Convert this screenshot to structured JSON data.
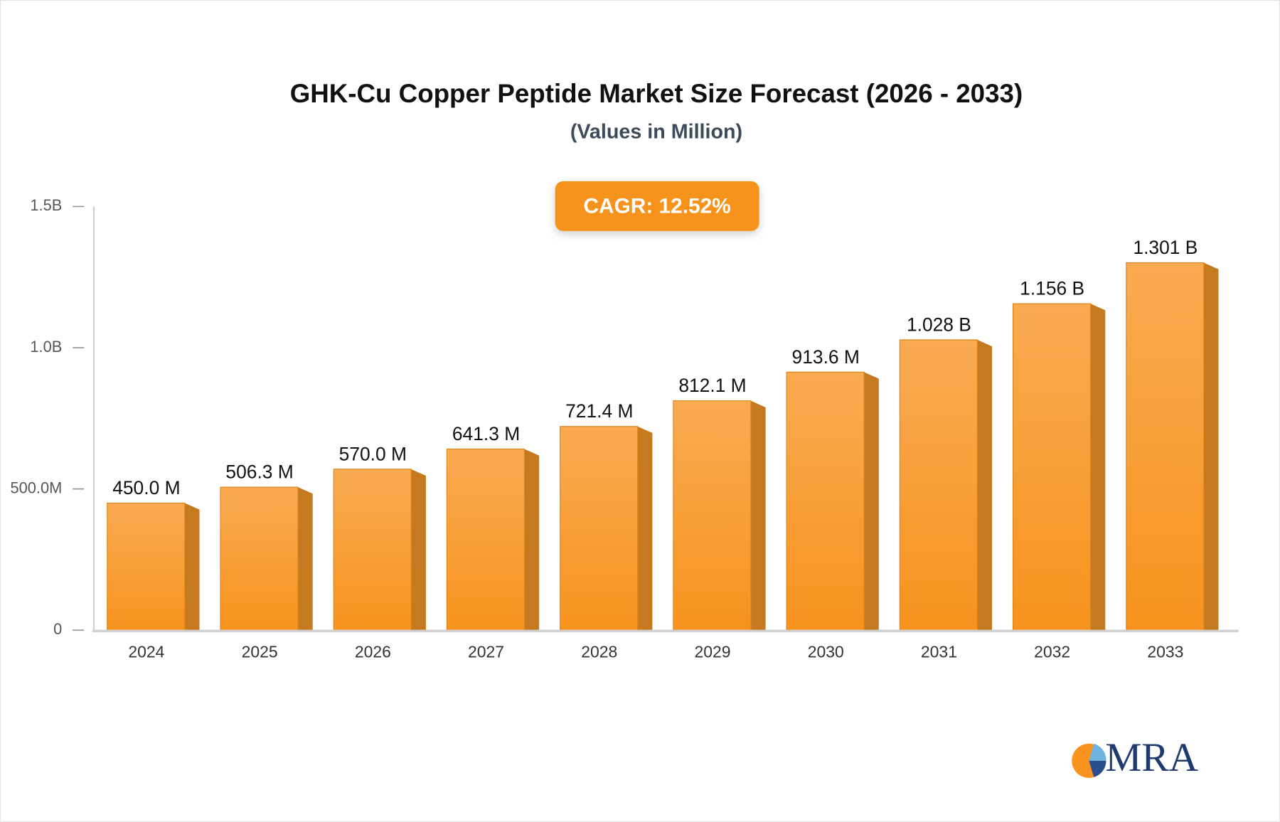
{
  "chart_data": {
    "type": "bar",
    "title": "GHK-Cu Copper Peptide Market Size Forecast (2026 - 2033)",
    "subtitle": "(Values in Million)",
    "annotation": "CAGR: 12.52%",
    "logo": "MRA",
    "categories": [
      "2024",
      "2025",
      "2026",
      "2027",
      "2028",
      "2029",
      "2030",
      "2031",
      "2032",
      "2033"
    ],
    "values": [
      450.0,
      506.3,
      570.0,
      641.3,
      721.4,
      812.1,
      913.6,
      1028,
      1156,
      1301
    ],
    "value_labels": [
      "450.0 M",
      "506.3 M",
      "570.0 M",
      "641.3 M",
      "721.4 M",
      "812.1 M",
      "913.6 M",
      "1.028 B",
      "1.156 B",
      "1.301 B"
    ],
    "color": "#f7931e",
    "ylim": [
      0,
      1500
    ],
    "yticks": [
      0,
      {
        "value": 500,
        "label": "500.0M"
      },
      {
        "value": 1000,
        "label": "1.0B"
      },
      {
        "value": 1500,
        "label": "1.5B"
      }
    ]
  }
}
